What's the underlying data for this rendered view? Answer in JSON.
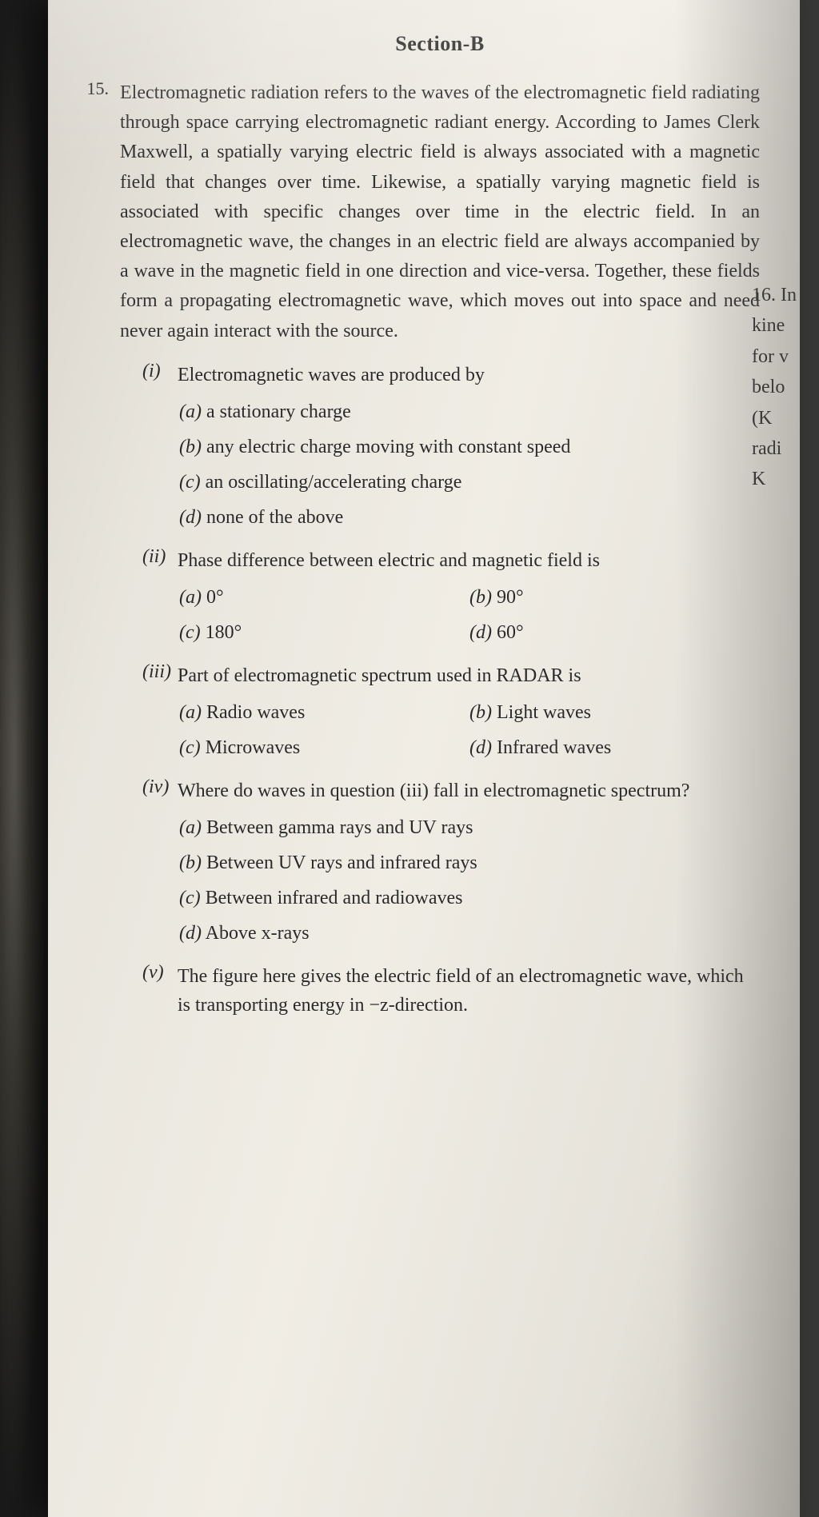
{
  "section_title": "Section-B",
  "question": {
    "number": "15.",
    "passage": "Electromagnetic radiation refers to the waves of the electromagnetic field radiating through space carrying electromagnetic radiant energy. According to James Clerk Maxwell, a spatially varying electric field is always associated with a magnetic field that changes over time. Likewise, a spatially varying magnetic field is associated with specific changes over time in the electric field. In an electromagnetic wave, the changes in an electric field are always accompanied by a wave in the magnetic field in one direction and vice-versa. Together, these fields form a propagating electromagnetic wave, which moves out into space and need never again interact with the source.",
    "subs": [
      {
        "label": "(i)",
        "text": "Electromagnetic waves are produced by",
        "layout": "single",
        "options": [
          {
            "label": "(a)",
            "text": "a stationary charge"
          },
          {
            "label": "(b)",
            "text": "any electric charge moving with constant speed"
          },
          {
            "label": "(c)",
            "text": "an oscillating/accelerating charge"
          },
          {
            "label": "(d)",
            "text": "none of the above"
          }
        ]
      },
      {
        "label": "(ii)",
        "text": "Phase difference between electric and magnetic field is",
        "layout": "two-col",
        "options": [
          {
            "label": "(a)",
            "text": "0°"
          },
          {
            "label": "(b)",
            "text": "90°"
          },
          {
            "label": "(c)",
            "text": "180°"
          },
          {
            "label": "(d)",
            "text": "60°"
          }
        ]
      },
      {
        "label": "(iii)",
        "text": "Part of electromagnetic spectrum used in RADAR is",
        "layout": "two-col",
        "options": [
          {
            "label": "(a)",
            "text": "Radio waves"
          },
          {
            "label": "(b)",
            "text": "Light waves"
          },
          {
            "label": "(c)",
            "text": "Microwaves"
          },
          {
            "label": "(d)",
            "text": "Infrared waves"
          }
        ]
      },
      {
        "label": "(iv)",
        "text": "Where do waves in question (iii) fall in electromagnetic spectrum?",
        "layout": "single",
        "options": [
          {
            "label": "(a)",
            "text": "Between gamma rays and UV rays"
          },
          {
            "label": "(b)",
            "text": "Between UV rays and infrared rays"
          },
          {
            "label": "(c)",
            "text": "Between infrared and radiowaves"
          },
          {
            "label": "(d)",
            "text": "Above x-rays"
          }
        ]
      },
      {
        "label": "(v)",
        "text": "The figure here gives the electric field of an electromagnetic wave, which is transporting energy in −z-direction.",
        "layout": "none",
        "options": []
      }
    ]
  },
  "right_cut": {
    "q16": "16.",
    "l1": "In a",
    "l2": "kine",
    "l3": "for v",
    "l4": "belo",
    "l5": "(K",
    "l6": "radi",
    "l7": "K"
  }
}
